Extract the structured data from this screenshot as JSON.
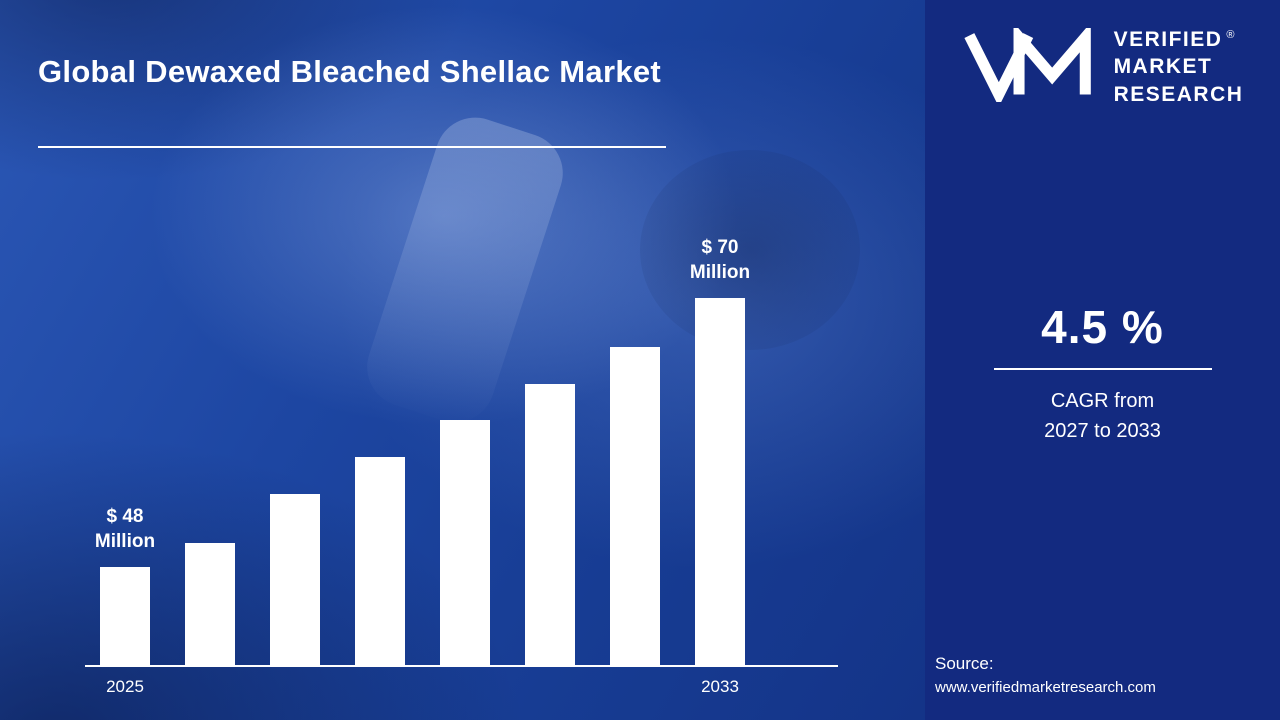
{
  "title": {
    "text": "Global Dewaxed Bleached Shellac Market"
  },
  "brand": {
    "line1": "VERIFIED",
    "line2": "MARKET",
    "line3": "RESEARCH",
    "registered": "®"
  },
  "panel": {
    "cagr_value": "4.5 %",
    "cagr_line1": "CAGR from",
    "cagr_line2": "2027 to 2033",
    "source_label": "Source:",
    "source_url": "www.verifiedmarketresearch.com",
    "background_color": "#132a80"
  },
  "colors": {
    "bar": "#ffffff",
    "text": "#ffffff",
    "main_background": "#1d46a2"
  },
  "chart_data": {
    "type": "bar",
    "title": "Global Dewaxed Bleached Shellac Market",
    "value_unit": "$ Million",
    "categories": [
      "2025",
      "",
      "",
      "",
      "",
      "",
      "",
      "2033"
    ],
    "values": [
      48,
      50,
      54,
      57,
      60,
      63,
      66,
      70
    ],
    "baseline": 40,
    "ymax": 70,
    "bar_color": "#ffffff",
    "axis_color": "#ffffff",
    "grid": false,
    "legend": false,
    "annotations": [
      {
        "index": 0,
        "lines": [
          "$ 48",
          "Million"
        ]
      },
      {
        "index": 7,
        "lines": [
          "$ 70",
          "Million"
        ]
      }
    ]
  }
}
